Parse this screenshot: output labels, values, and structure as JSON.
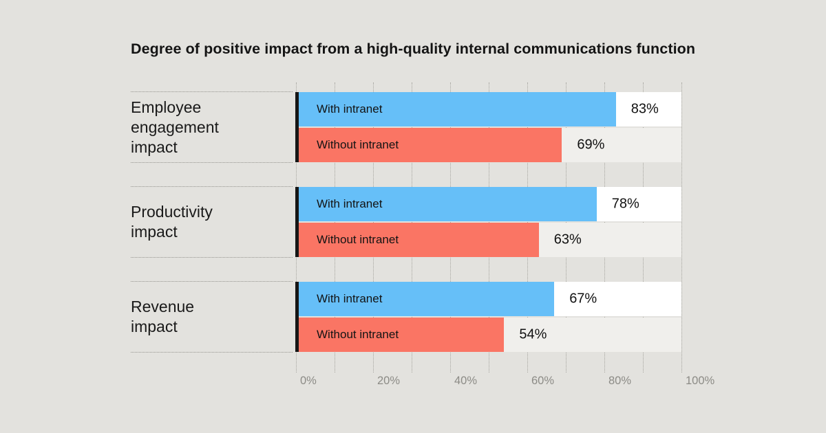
{
  "title": "Degree of positive impact from a high-quality internal communications function",
  "colors": {
    "background": "#E3E2DE",
    "with_intranet_bar": "#66BFF8",
    "without_intranet_bar": "#FA7564",
    "track_with": "#FFFFFF",
    "track_without": "#F0EFEC",
    "baseline": "#161616",
    "text": "#1A1A1A",
    "axis_text": "#8C8B86"
  },
  "chart_data": {
    "type": "bar",
    "orientation": "horizontal",
    "title": "Degree of positive impact from a high-quality internal communications function",
    "categories": [
      "Employee engagement impact",
      "Productivity impact",
      "Revenue impact"
    ],
    "series": [
      {
        "name": "With intranet",
        "values": [
          83,
          78,
          67
        ],
        "color": "#66BFF8"
      },
      {
        "name": "Without intranet",
        "values": [
          69,
          63,
          54
        ],
        "color": "#FA7564"
      }
    ],
    "value_labels": [
      [
        "83%",
        "78%",
        "67%"
      ],
      [
        "69%",
        "63%",
        "54%"
      ]
    ],
    "xlabel": "",
    "ylabel": "",
    "xlim": [
      0,
      100
    ],
    "x_tick_labels": [
      "0%",
      "20%",
      "40%",
      "60%",
      "80%",
      "100%"
    ],
    "grid": "dotted vertical lines every 10%, visible between bar groups",
    "legend_position": "labels inside bars"
  },
  "groups": [
    {
      "label": "Employee\nengagement\nimpact",
      "bars": [
        {
          "series": "With intranet",
          "value": 83,
          "display": "83%"
        },
        {
          "series": "Without intranet",
          "value": 69,
          "display": "69%"
        }
      ]
    },
    {
      "label": "Productivity\nimpact",
      "bars": [
        {
          "series": "With intranet",
          "value": 78,
          "display": "78%"
        },
        {
          "series": "Without intranet",
          "value": 63,
          "display": "63%"
        }
      ]
    },
    {
      "label": "Revenue\nimpact",
      "bars": [
        {
          "series": "With intranet",
          "value": 67,
          "display": "67%"
        },
        {
          "series": "Without intranet",
          "value": 54,
          "display": "54%"
        }
      ]
    }
  ],
  "axis": {
    "grid_step": 10,
    "ticks": [
      {
        "value": 0,
        "label": "0%"
      },
      {
        "value": 20,
        "label": "20%"
      },
      {
        "value": 40,
        "label": "40%"
      },
      {
        "value": 60,
        "label": "60%"
      },
      {
        "value": 80,
        "label": "80%"
      },
      {
        "value": 100,
        "label": "100%"
      }
    ]
  }
}
